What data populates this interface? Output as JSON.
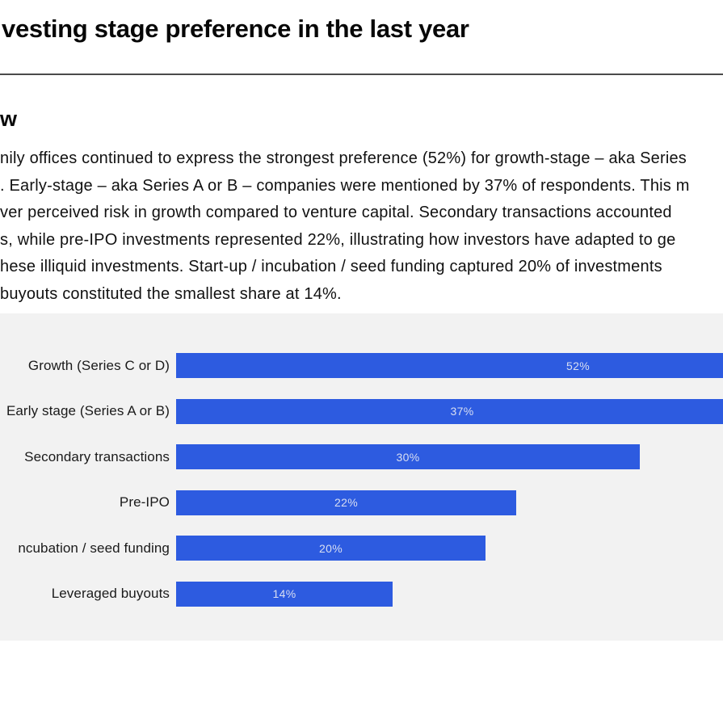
{
  "page": {
    "title": "vesting stage preference in the last year",
    "section_heading": "w",
    "paragraph_lines": [
      "nily offices continued to express the strongest preference (52%) for growth-stage – aka Series",
      ". Early-stage – aka Series A or B – companies were mentioned by 37% of respondents. This m",
      "ver perceived risk in growth compared to venture capital. Secondary transactions accounted",
      "s, while pre-IPO investments represented 22%, illustrating how investors have adapted to ge",
      "hese illiquid investments. Start-up / incubation / seed funding captured 20% of investments",
      "buyouts constituted the smallest share at 14%."
    ]
  },
  "chart_data": {
    "type": "bar",
    "orientation": "horizontal",
    "categories": [
      "Growth (Series C or D)",
      "Early stage (Series A or B)",
      "Secondary transactions",
      "Pre-IPO",
      "ncubation / seed funding",
      "Leveraged buyouts"
    ],
    "values": [
      52,
      37,
      30,
      22,
      20,
      14
    ],
    "value_labels": [
      "52%",
      "37%",
      "30%",
      "22%",
      "20%",
      "14%"
    ],
    "title": "",
    "xlabel": "",
    "ylabel": "",
    "xlim": [
      0,
      46.8
    ],
    "grid": false,
    "legend": "none",
    "bar_color": "#2d5be0",
    "panel_bg": "#f2f2f2",
    "value_text_color": "#d9dff2",
    "category_text_color": "#1a1a1a",
    "note": "Bars for 52% and 37% are clipped by the right edge of the page"
  }
}
